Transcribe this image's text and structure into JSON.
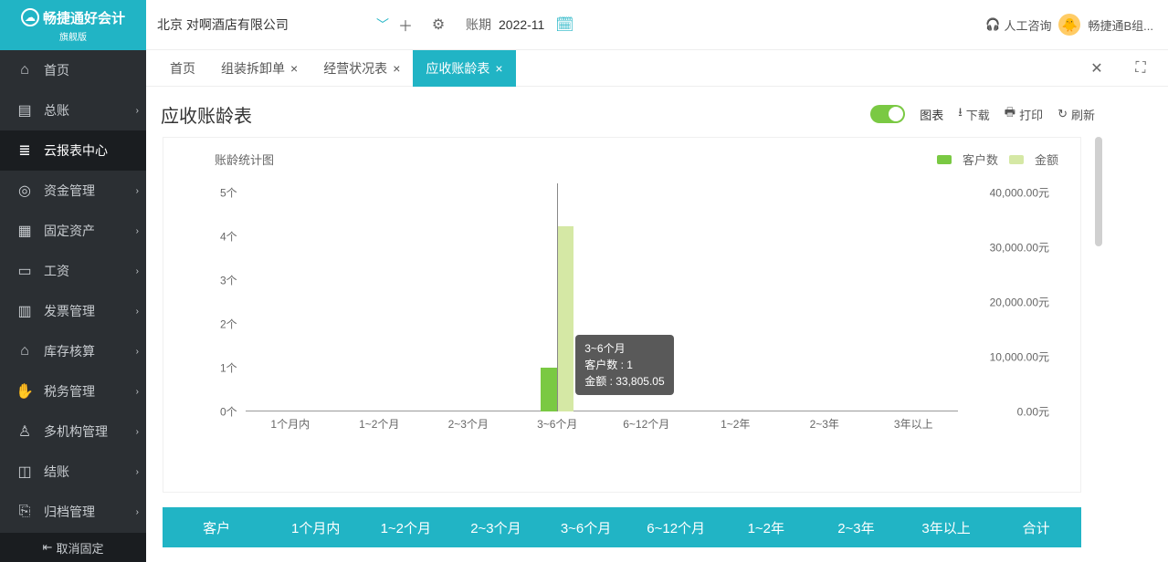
{
  "brand": {
    "name": "畅捷通好会计",
    "edition": "旗舰版"
  },
  "sidebar": {
    "items": [
      {
        "label": "首页",
        "icon": "⌂"
      },
      {
        "label": "总账",
        "icon": "▤",
        "expand": true
      },
      {
        "label": "云报表中心",
        "icon": "≣",
        "active": true
      },
      {
        "label": "资金管理",
        "icon": "◎",
        "expand": true
      },
      {
        "label": "固定资产",
        "icon": "▦",
        "expand": true
      },
      {
        "label": "工资",
        "icon": "▭",
        "expand": true
      },
      {
        "label": "发票管理",
        "icon": "▥",
        "expand": true
      },
      {
        "label": "库存核算",
        "icon": "⌂",
        "expand": true
      },
      {
        "label": "税务管理",
        "icon": "✋",
        "expand": true
      },
      {
        "label": "多机构管理",
        "icon": "♙",
        "expand": true
      },
      {
        "label": "结账",
        "icon": "◫",
        "expand": true
      },
      {
        "label": "归档管理",
        "icon": "⎘",
        "expand": true
      }
    ],
    "cancel_fixed": "取消固定"
  },
  "topbar": {
    "company": "北京 对啊酒店有限公司",
    "period_label": "账期",
    "period_value": "2022-11",
    "consult": "人工咨询",
    "user": "畅捷通B组..."
  },
  "tabs": {
    "items": [
      {
        "label": "首页",
        "closable": false
      },
      {
        "label": "组装拆卸单",
        "closable": true
      },
      {
        "label": "经营状况表",
        "closable": true
      },
      {
        "label": "应收账龄表",
        "closable": true,
        "active": true
      }
    ]
  },
  "page": {
    "title": "应收账龄表",
    "actions": {
      "chart": "图表",
      "download": "下载",
      "print": "打印",
      "refresh": "刷新"
    }
  },
  "chart": {
    "title": "账龄统计图",
    "legend": [
      {
        "label": "客户数",
        "color": "#7ac943"
      },
      {
        "label": "金额",
        "color": "#d5e8a5"
      }
    ],
    "y_left": {
      "ticks": [
        0,
        1,
        2,
        3,
        4,
        5
      ],
      "suffix": "个",
      "max": 5
    },
    "y_right": {
      "ticks": [
        0,
        10000,
        20000,
        30000,
        40000
      ],
      "suffix": "元",
      "max": 40000,
      "decimals": 2
    },
    "x_categories": [
      "1个月内",
      "1~2个月",
      "2~3个月",
      "3~6个月",
      "6~12个月",
      "1~2年",
      "2~3年",
      "3年以上"
    ],
    "series_customers": [
      0,
      0,
      0,
      1,
      0,
      0,
      0,
      0
    ],
    "series_amount": [
      0,
      0,
      0,
      33805.05,
      0,
      0,
      0,
      0
    ],
    "bar_colors": {
      "customers": "#7ac943",
      "amount": "#d5e8a5"
    },
    "tooltip": {
      "category": "3~6个月",
      "line1": "客户数 : 1",
      "line2": "金额 : 33,805.05"
    }
  },
  "table": {
    "headers": [
      "客户",
      "1个月内",
      "1~2个月",
      "2~3个月",
      "3~6个月",
      "6~12个月",
      "1~2年",
      "2~3年",
      "3年以上",
      "合计"
    ]
  }
}
